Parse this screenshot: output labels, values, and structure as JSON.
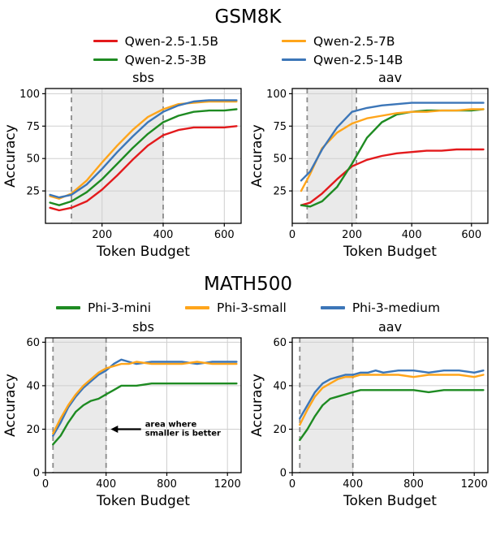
{
  "chart_data": {
    "figures": [
      {
        "title": "GSM8K",
        "legend": [
          {
            "label": "Qwen-2.5-1.5B",
            "color": "#e31a1c"
          },
          {
            "label": "Qwen-2.5-7B",
            "color": "#ffa51b"
          },
          {
            "label": "Qwen-2.5-3B",
            "color": "#1e8b22"
          },
          {
            "label": "Qwen-2.5-14B",
            "color": "#3c76b8"
          }
        ],
        "charts": [
          {
            "type": "line",
            "title": "sbs",
            "xlabel": "Token Budget",
            "ylabel": "Accuracy",
            "xlim": [
              15,
              655
            ],
            "ylim": [
              0,
              104
            ],
            "xticks": [
              200,
              400,
              600
            ],
            "xtick_labels": [
              "200",
              "400",
              "600"
            ],
            "yticks": [
              25,
              50,
              75,
              100
            ],
            "ytick_labels": [
              "25",
              "50",
              "75",
              "100"
            ],
            "grid": true,
            "dashed": [
              100,
              400
            ],
            "shaded": [
              100,
              400
            ],
            "x": [
              30,
              60,
              100,
              150,
              200,
              250,
              300,
              350,
              400,
              450,
              500,
              550,
              600,
              640
            ],
            "series": [
              {
                "name": "Qwen-2.5-1.5B",
                "color": "#e31a1c",
                "y": [
                  12,
                  10,
                  12,
                  17,
                  26,
                  37,
                  49,
                  60,
                  68,
                  72,
                  74,
                  74,
                  74,
                  75
                ]
              },
              {
                "name": "Qwen-2.5-3B",
                "color": "#1e8b22",
                "y": [
                  16,
                  14,
                  17,
                  24,
                  34,
                  46,
                  58,
                  69,
                  78,
                  83,
                  86,
                  87,
                  87,
                  88
                ]
              },
              {
                "name": "Qwen-2.5-7B",
                "color": "#ffa51b",
                "y": [
                  21,
                  19,
                  23,
                  33,
                  47,
                  60,
                  72,
                  82,
                  88,
                  92,
                  93,
                  94,
                  94,
                  94
                ]
              },
              {
                "name": "Qwen-2.5-14B",
                "color": "#3c76b8",
                "y": [
                  22,
                  20,
                  22,
                  30,
                  42,
                  55,
                  67,
                  78,
                  86,
                  91,
                  94,
                  95,
                  95,
                  95
                ]
              }
            ]
          },
          {
            "type": "line",
            "title": "aav",
            "xlabel": "Token Budget",
            "ylabel": "Accuracy",
            "xlim": [
              0,
              655
            ],
            "ylim": [
              0,
              104
            ],
            "xticks": [
              0,
              200,
              400,
              600
            ],
            "xtick_labels": [
              "0",
              "200",
              "400",
              "600"
            ],
            "yticks": [
              25,
              50,
              75,
              100
            ],
            "ytick_labels": [
              "25",
              "50",
              "75",
              "100"
            ],
            "grid": true,
            "dashed": [
              50,
              215
            ],
            "shaded": [
              50,
              215
            ],
            "x": [
              30,
              60,
              100,
              150,
              200,
              250,
              300,
              350,
              400,
              450,
              500,
              550,
              600,
              640
            ],
            "series": [
              {
                "name": "Qwen-2.5-1.5B",
                "color": "#e31a1c",
                "y": [
                  14,
                  16,
                  23,
                  34,
                  44,
                  49,
                  52,
                  54,
                  55,
                  56,
                  56,
                  57,
                  57,
                  57
                ]
              },
              {
                "name": "Qwen-2.5-3B",
                "color": "#1e8b22",
                "y": [
                  14,
                  13,
                  17,
                  28,
                  46,
                  66,
                  78,
                  84,
                  86,
                  87,
                  87,
                  87,
                  87,
                  88
                ]
              },
              {
                "name": "Qwen-2.5-7B",
                "color": "#ffa51b",
                "y": [
                  25,
                  38,
                  58,
                  70,
                  77,
                  81,
                  83,
                  85,
                  86,
                  86,
                  87,
                  87,
                  88,
                  88
                ]
              },
              {
                "name": "Qwen-2.5-14B",
                "color": "#3c76b8",
                "y": [
                  33,
                  40,
                  57,
                  74,
                  86,
                  89,
                  91,
                  92,
                  93,
                  93,
                  93,
                  93,
                  93,
                  93
                ]
              }
            ]
          }
        ]
      },
      {
        "title": "MATH500",
        "legend": [
          {
            "label": "Phi-3-mini",
            "color": "#1e8b22"
          },
          {
            "label": "Phi-3-small",
            "color": "#ffa51b"
          },
          {
            "label": "Phi-3-medium",
            "color": "#3c76b8"
          }
        ],
        "charts": [
          {
            "type": "line",
            "title": "sbs",
            "xlabel": "Token Budget",
            "ylabel": "Accuracy",
            "xlim": [
              0,
              1290
            ],
            "ylim": [
              0,
              62
            ],
            "xticks": [
              0,
              400,
              800,
              1200
            ],
            "xtick_labels": [
              "0",
              "400",
              "800",
              "1200"
            ],
            "yticks": [
              0,
              20,
              40,
              60
            ],
            "ytick_labels": [
              "0",
              "20",
              "40",
              "60"
            ],
            "grid": true,
            "dashed": [
              50,
              400
            ],
            "shaded": [
              50,
              400
            ],
            "annotation": {
              "lines": [
                "area where",
                "smaller is better"
              ],
              "arrow_tip_x": 430,
              "arrow_tail_x": 630,
              "y": 20
            },
            "x": [
              50,
              100,
              150,
              200,
              250,
              300,
              350,
              400,
              450,
              500,
              550,
              600,
              700,
              800,
              900,
              1000,
              1100,
              1200,
              1260
            ],
            "series": [
              {
                "name": "Phi-3-mini",
                "color": "#1e8b22",
                "y": [
                  13,
                  17,
                  23,
                  28,
                  31,
                  33,
                  34,
                  36,
                  38,
                  40,
                  40,
                  40,
                  41,
                  41,
                  41,
                  41,
                  41,
                  41,
                  41
                ]
              },
              {
                "name": "Phi-3-medium",
                "color": "#3c76b8",
                "y": [
                  17,
                  23,
                  30,
                  35,
                  39,
                  42,
                  45,
                  47,
                  50,
                  52,
                  51,
                  50,
                  51,
                  51,
                  51,
                  50,
                  51,
                  51,
                  51
                ]
              },
              {
                "name": "Phi-3-small",
                "color": "#ffa51b",
                "y": [
                  18,
                  25,
                  31,
                  36,
                  40,
                  43,
                  46,
                  48,
                  49,
                  50,
                  50,
                  51,
                  50,
                  50,
                  50,
                  51,
                  50,
                  50,
                  50
                ]
              }
            ]
          },
          {
            "type": "line",
            "title": "aav",
            "xlabel": "Token Budget",
            "ylabel": "Accuracy",
            "xlim": [
              0,
              1290
            ],
            "ylim": [
              0,
              62
            ],
            "xticks": [
              0,
              400,
              800,
              1200
            ],
            "xtick_labels": [
              "0",
              "400",
              "800",
              "1200"
            ],
            "yticks": [
              0,
              20,
              40,
              60
            ],
            "ytick_labels": [
              "0",
              "20",
              "40",
              "60"
            ],
            "grid": true,
            "dashed": [
              50,
              400
            ],
            "shaded": [
              50,
              400
            ],
            "x": [
              50,
              100,
              150,
              200,
              250,
              300,
              350,
              400,
              450,
              500,
              550,
              600,
              700,
              800,
              900,
              1000,
              1100,
              1200,
              1260
            ],
            "series": [
              {
                "name": "Phi-3-mini",
                "color": "#1e8b22",
                "y": [
                  15,
                  20,
                  26,
                  31,
                  34,
                  35,
                  36,
                  37,
                  38,
                  38,
                  38,
                  38,
                  38,
                  38,
                  37,
                  38,
                  38,
                  38,
                  38
                ]
              },
              {
                "name": "Phi-3-medium",
                "color": "#3c76b8",
                "y": [
                  25,
                  31,
                  37,
                  41,
                  43,
                  44,
                  45,
                  45,
                  46,
                  46,
                  47,
                  46,
                  47,
                  47,
                  46,
                  47,
                  47,
                  46,
                  47
                ]
              },
              {
                "name": "Phi-3-small",
                "color": "#ffa51b",
                "y": [
                  22,
                  29,
                  35,
                  39,
                  41,
                  43,
                  44,
                  44,
                  45,
                  45,
                  45,
                  45,
                  45,
                  44,
                  45,
                  45,
                  45,
                  44,
                  45
                ]
              }
            ]
          }
        ]
      }
    ]
  }
}
